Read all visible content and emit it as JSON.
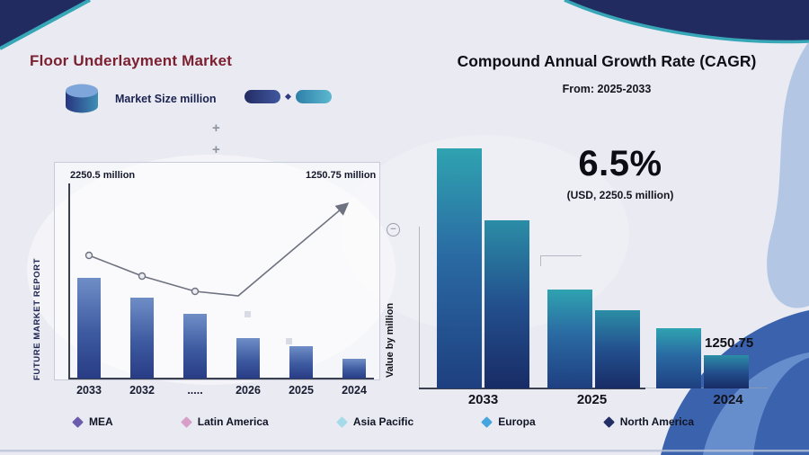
{
  "background_color": "#e9eaf2",
  "chart_data": [
    {
      "id": "market-size-trend",
      "type": "bar",
      "title": "Floor Underlayment Market",
      "legend": [
        "Market Size million"
      ],
      "legend_position": "top-left",
      "ylabel": "FUTURE MARKET REPORT",
      "categories": [
        "2033",
        "2032",
        ".....",
        "2026",
        "2025",
        "2024"
      ],
      "values": [
        2250.5,
        1800,
        1450,
        900,
        720,
        450
      ],
      "ymax_value": 2250.5,
      "annotations": [
        "2250.5 million",
        "1250.75 million"
      ],
      "overlay": "declining marker line over left bars with upward trend arrow toward right",
      "grid": false
    },
    {
      "id": "cagr-comparison",
      "type": "bar",
      "title": "Compound Annual Growth Rate (CAGR)",
      "subtitle": "From: 2025-2033",
      "cagr": "6.5%",
      "cagr_note": "(USD, 2250.5 million)",
      "ylabel": "Value by million",
      "categories": [
        "2033",
        "2025",
        "2024"
      ],
      "series": [
        {
          "name": "market-size-high",
          "values": [
            2250.5,
            927,
            565
          ]
        },
        {
          "name": "market-size-low",
          "values": [
            1576,
            733,
            312
          ]
        }
      ],
      "ymax_value": 2250.5,
      "bar_label": "1250.75",
      "grid": false
    }
  ],
  "bottom_legend": [
    {
      "label": "MEA",
      "color": "#6c5cae"
    },
    {
      "label": "Latin America",
      "color": "#d79fc7"
    },
    {
      "label": "Asia Pacific",
      "color": "#a5dbe9"
    },
    {
      "label": "Europa",
      "color": "#45a5de"
    },
    {
      "label": "North America",
      "color": "#242e66"
    }
  ]
}
